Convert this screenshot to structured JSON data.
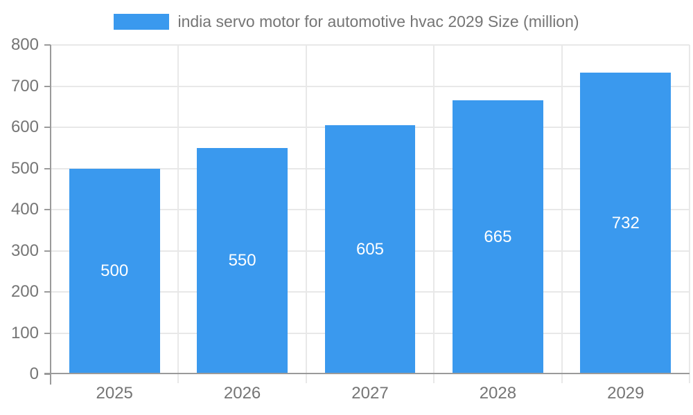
{
  "legend": {
    "label": "india servo motor for automotive hvac 2029 Size (million)",
    "swatch_color": "#3a99ee"
  },
  "chart_data": {
    "type": "bar",
    "title": "india servo motor for automotive hvac 2029 Size (million)",
    "categories": [
      "2025",
      "2026",
      "2027",
      "2028",
      "2029"
    ],
    "values": [
      500,
      550,
      605,
      665,
      732
    ],
    "value_labels": [
      "500",
      "550",
      "605",
      "665",
      "732"
    ],
    "xlabel": "",
    "ylabel": "",
    "ylim": [
      0,
      800
    ],
    "y_ticks": [
      0,
      100,
      200,
      300,
      400,
      500,
      600,
      700,
      800
    ],
    "grid": true,
    "legend_position": "top",
    "colors": {
      "bar": "#3a99ee",
      "value_label": "#ffffff",
      "gridline": "#e8e8e8",
      "axis": "#9a9a9a",
      "tick_label": "#757575"
    }
  }
}
